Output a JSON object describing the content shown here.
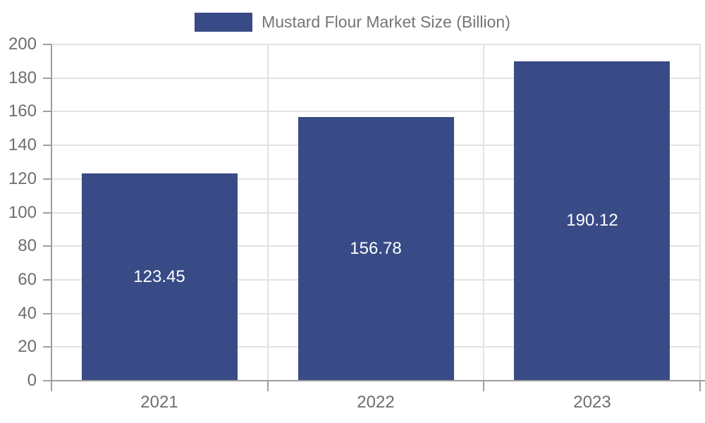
{
  "legend": {
    "label": "Mustard Flour Market Size (Billion)"
  },
  "chart_data": {
    "type": "bar",
    "title": "Mustard Flour Market Size (Billion)",
    "categories": [
      "2021",
      "2022",
      "2023"
    ],
    "series": [
      {
        "name": "Mustard Flour Market Size (Billion)",
        "values": [
          123.45,
          156.78,
          190.12
        ],
        "data_labels": [
          "123.45",
          "156.78",
          "190.12"
        ],
        "data_label_position": "inside-center"
      }
    ],
    "xlabel": "",
    "ylabel": "",
    "ylim": [
      0,
      200
    ],
    "ytick_step": 20,
    "yticks": [
      0,
      20,
      40,
      60,
      80,
      100,
      120,
      140,
      160,
      180,
      200
    ],
    "grid": true,
    "grid_vertical_between_categories": true,
    "legend_position": "top-center",
    "colors": {
      "bar": "#384B86",
      "grid": "#e2e2e2",
      "axis": "#9e9e9e",
      "tick_label": "#6e6e6e",
      "legend_text": "#757575",
      "bar_label": "#ffffff",
      "background": "#ffffff"
    }
  }
}
